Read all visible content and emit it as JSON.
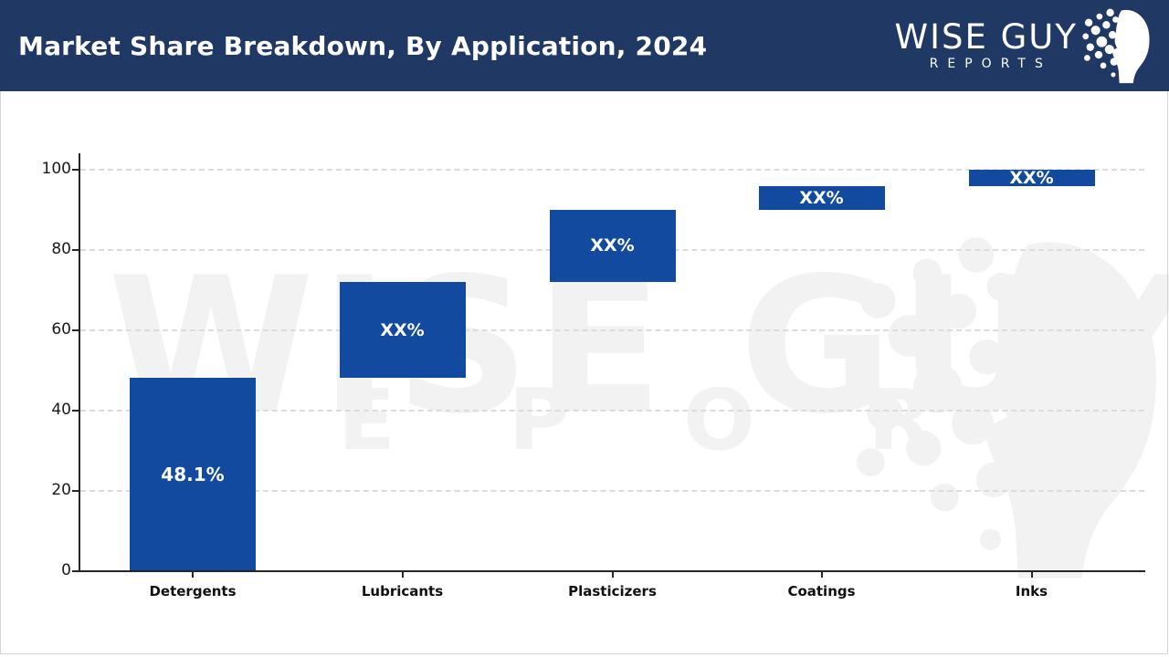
{
  "header": {
    "title": "Market Share Breakdown, By Application, 2024",
    "logo": {
      "line1": "WISE GUY",
      "line2": "REPORTS"
    }
  },
  "watermark": {
    "line1": "WISE GUY",
    "line2": "REPORTS"
  },
  "colors": {
    "header_bg": "#1f3864",
    "bar": "#114a9e",
    "bar_label": "#ffffff",
    "grid": "#dcdcdc",
    "axis": "#262626",
    "watermark": "#f2f2f2"
  },
  "chart_data": {
    "type": "bar",
    "subtype": "waterfall",
    "title": "Market Share Breakdown, By Application, 2024",
    "xlabel": "",
    "ylabel": "",
    "categories": [
      "Detergents",
      "Lubricants",
      "Plasticizers",
      "Coatings",
      "Inks"
    ],
    "segments": [
      {
        "category": "Detergents",
        "start": 0,
        "end": 48.1,
        "label": "48.1%"
      },
      {
        "category": "Lubricants",
        "start": 48.1,
        "end": 72.1,
        "label": "XX%"
      },
      {
        "category": "Plasticizers",
        "start": 72.1,
        "end": 90.0,
        "label": "XX%"
      },
      {
        "category": "Coatings",
        "start": 90.0,
        "end": 96.0,
        "label": "XX%"
      },
      {
        "category": "Inks",
        "start": 96.0,
        "end": 100.0,
        "label": "XX%"
      }
    ],
    "ylim": [
      0,
      104
    ],
    "yticks": [
      0,
      20,
      40,
      60,
      80,
      100
    ],
    "grid": "horizontal-dashed",
    "legend": null
  }
}
